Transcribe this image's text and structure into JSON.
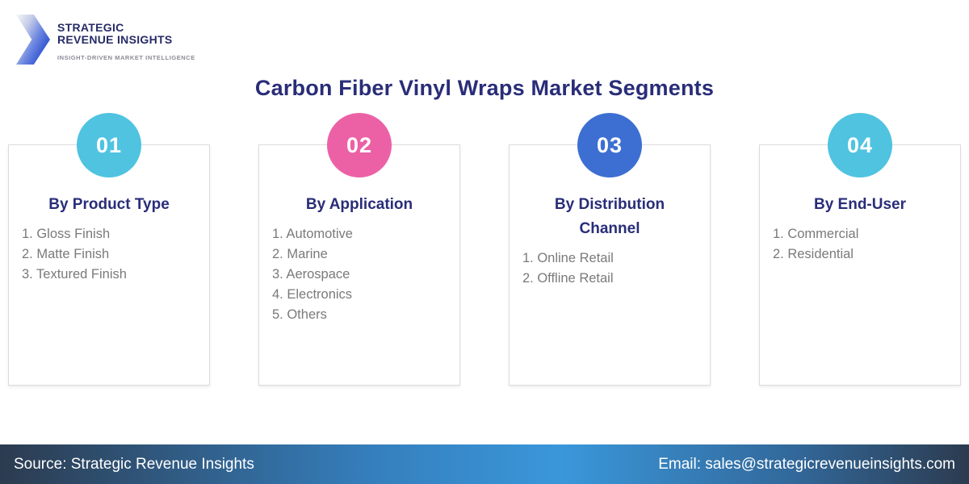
{
  "logo": {
    "line1": "STRATEGIC",
    "line2": "REVENUE INSIGHTS",
    "tagline": "INSIGHT-DRIVEN MARKET INTELLIGENCE"
  },
  "title": "Carbon Fiber Vinyl Wraps Market Segments",
  "cards": [
    {
      "number": "01",
      "color": "#4fc3e0",
      "heading": "By Product Type",
      "items": [
        "Gloss Finish",
        "Matte Finish",
        "Textured Finish"
      ]
    },
    {
      "number": "02",
      "color": "#ec61a6",
      "heading": "By Application",
      "items": [
        "Automotive",
        "Marine",
        "Aerospace",
        "Electronics",
        "Others"
      ]
    },
    {
      "number": "03",
      "color": "#3d6fd2",
      "heading": "By Distribution Channel",
      "items": [
        "Online Retail",
        "Offline Retail"
      ]
    },
    {
      "number": "04",
      "color": "#4fc3e0",
      "heading": "By End-User",
      "items": [
        "Commercial",
        "Residential"
      ]
    }
  ],
  "footer": {
    "source": "Source: Strategic Revenue Insights",
    "email": "Email: sales@strategicrevenueinsights.com"
  },
  "colors": {
    "title_navy": "#292d78",
    "list_gray": "#7a7a7a",
    "badge_teal": "#4fc3e0",
    "badge_pink": "#ec61a6",
    "badge_blue": "#3d6fd2",
    "footer_dark": "#2c3b4f",
    "footer_blue": "#3a97da"
  }
}
